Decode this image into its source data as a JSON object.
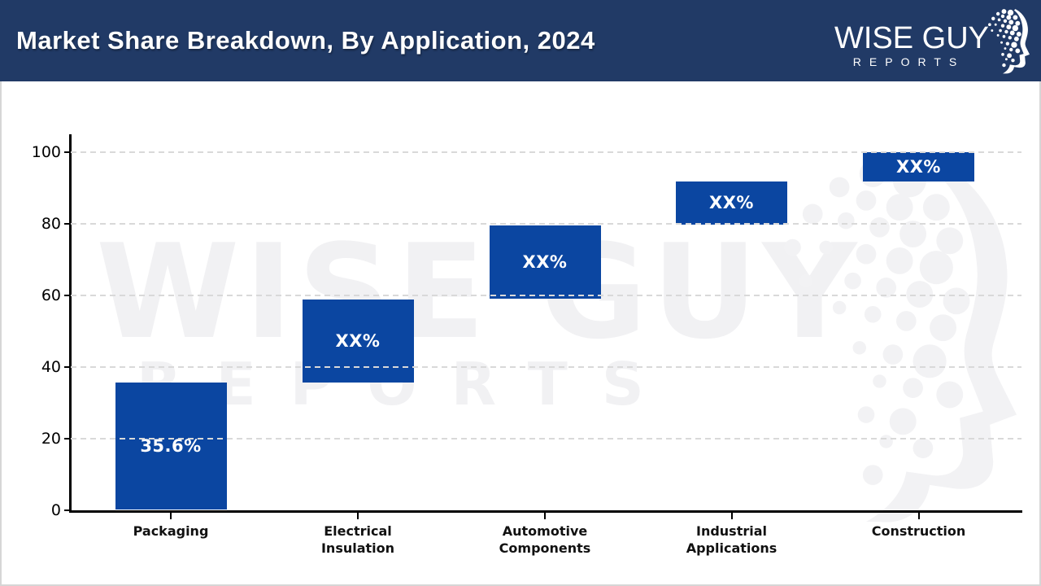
{
  "header": {
    "title": "Market Share Breakdown, By Application, 2024",
    "logo": {
      "name": "WISE GUY",
      "sub": "REPORTS"
    }
  },
  "watermark": {
    "line1": "WISE GUY",
    "line2": "REPORTS"
  },
  "colors": {
    "header_bg": "#213a66",
    "bar": "#0b46a1",
    "grid": "#d9d9d9",
    "axis": "#000000",
    "bar_label": "#ffffff",
    "watermark": "#f1f1f3"
  },
  "chart_data": {
    "type": "bar",
    "variant": "floating-waterfall",
    "title": "Market Share Breakdown, By Application, 2024",
    "xlabel": "",
    "ylabel": "",
    "ylim": [
      0,
      105
    ],
    "yticks": [
      0,
      20,
      40,
      60,
      80,
      100
    ],
    "grid": {
      "horizontal": true,
      "style": "dashed"
    },
    "legend": null,
    "categories": [
      "Packaging",
      "Electrical Insulation",
      "Automotive Components",
      "Industrial Applications",
      "Construction"
    ],
    "category_label_lines": [
      [
        "Packaging"
      ],
      [
        "Electrical",
        "Insulation"
      ],
      [
        "Automotive",
        "Components"
      ],
      [
        "Industrial",
        "Applications"
      ],
      [
        "Construction"
      ]
    ],
    "segments": [
      {
        "category": "Packaging",
        "start": 0,
        "end": 35.6,
        "label": "35.6%"
      },
      {
        "category": "Electrical Insulation",
        "start": 35.6,
        "end": 58.8,
        "label": "XX%"
      },
      {
        "category": "Automotive Components",
        "start": 59.0,
        "end": 79.4,
        "label": "XX%"
      },
      {
        "category": "Industrial Applications",
        "start": 79.6,
        "end": 91.8,
        "label": "XX%"
      },
      {
        "category": "Construction",
        "start": 91.7,
        "end": 99.9,
        "label": "XX%"
      }
    ]
  }
}
